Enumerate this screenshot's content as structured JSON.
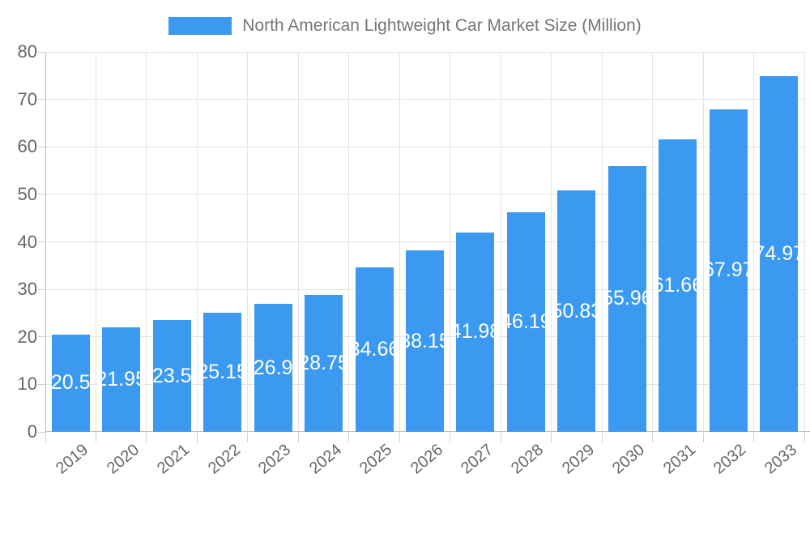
{
  "legend": {
    "label": "North American Lightweight Car Market Size (Million)"
  },
  "chart_data": {
    "type": "bar",
    "title": "North American Lightweight Car Market Size (Million)",
    "categories": [
      "2019",
      "2020",
      "2021",
      "2022",
      "2023",
      "2024",
      "2025",
      "2026",
      "2027",
      "2028",
      "2029",
      "2030",
      "2031",
      "2032",
      "2033"
    ],
    "values": [
      20.5,
      21.95,
      23.5,
      25.15,
      26.9,
      28.75,
      34.66,
      38.15,
      41.98,
      46.19,
      50.83,
      55.96,
      61.66,
      67.97,
      74.97
    ],
    "value_labels": [
      "20.5",
      "21.95",
      "23.5",
      "25.15",
      "26.9",
      "28.75",
      "34.66",
      "38.15",
      "41.98",
      "46.19",
      "50.83",
      "55.96",
      "61.66",
      "67.97",
      "74.97"
    ],
    "xlabel": "",
    "ylabel": "",
    "ylim": [
      0,
      80
    ],
    "yticks": [
      0,
      10,
      20,
      30,
      40,
      50,
      60,
      70,
      80
    ],
    "grid": true,
    "legend_position": "top",
    "colors": {
      "bar": "#3b99ef",
      "value_label": "#ffffff",
      "grid": "#e3e3e3",
      "axis": "#bdbdbd",
      "tick": "#cfcfcf",
      "tick_label": "#666666",
      "legend_text": "#757575"
    }
  }
}
